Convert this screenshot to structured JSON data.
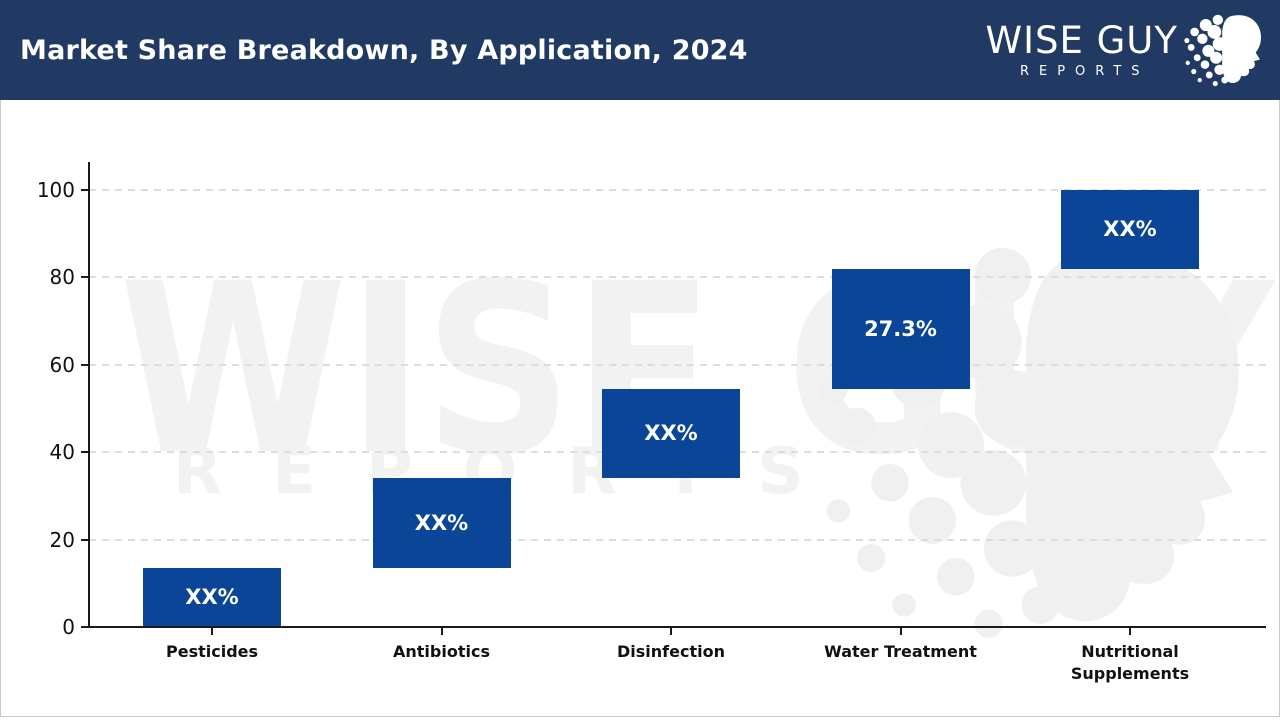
{
  "header": {
    "title": "Market Share Breakdown, By Application, 2024",
    "bg_color": "#203A63",
    "logo": {
      "line1": "WISE GUY",
      "line2": "REPORTS"
    }
  },
  "watermark": {
    "line1": "WISE GUY",
    "line2": "REPORTS"
  },
  "chart_data": {
    "type": "bar",
    "subtype": "floating-waterfall",
    "title": "Market Share Breakdown, By Application, 2024",
    "categories": [
      "Pesticides",
      "Antibiotics",
      "Disinfection",
      "Water Treatment",
      "Nutritional Supplements"
    ],
    "segments": [
      {
        "category": "Pesticides",
        "start": 0,
        "end": 13.6,
        "label": "XX%"
      },
      {
        "category": "Antibiotics",
        "start": 13.6,
        "end": 34.1,
        "label": "XX%"
      },
      {
        "category": "Disinfection",
        "start": 34.1,
        "end": 54.5,
        "label": "XX%"
      },
      {
        "category": "Water Treatment",
        "start": 54.5,
        "end": 81.8,
        "label": "27.3%"
      },
      {
        "category": "Nutritional Supplements",
        "start": 81.8,
        "end": 100,
        "label": "XX%"
      }
    ],
    "ylim": [
      0,
      100
    ],
    "yticks": [
      0,
      20,
      40,
      60,
      80,
      100
    ],
    "grid": "horizontal-dashed",
    "legend": "none",
    "bar_color": "#0A4598",
    "bar_label_color": "#FFFFFF"
  }
}
